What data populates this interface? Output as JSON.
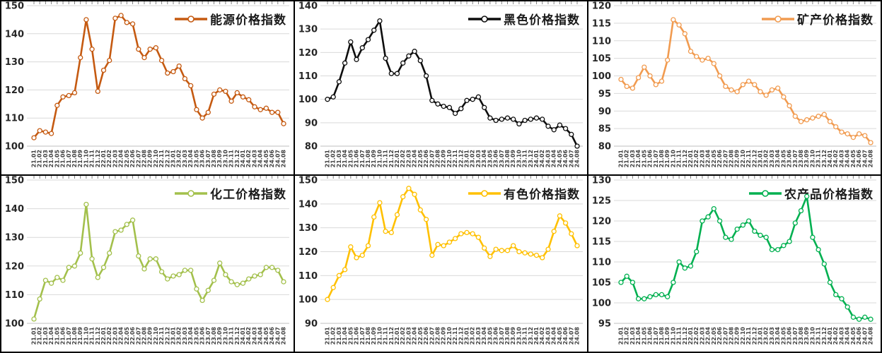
{
  "page": {
    "background": "#FFFFFF",
    "divider_color": "#000000",
    "gridline_color": "#D9D9D9",
    "axis_line_color": "#BFBFBF",
    "tick_mark_color": "#808080",
    "y_tick_label_color": "#262626",
    "x_tick_label_color": "#404040",
    "legend_text_color": "#1A1A1A"
  },
  "chart_data": {
    "type": "line",
    "layout": "2x3-grid",
    "grid": true,
    "legend_position": "top-right-inside",
    "marker": "circle-open-white-fill",
    "categories": [
      "21.01",
      "21.02",
      "21.03",
      "21.04",
      "21.05",
      "21.06",
      "21.07",
      "21.08",
      "21.09",
      "21.10",
      "21.11",
      "21.12",
      "22.01",
      "22.02",
      "22.03",
      "22.04",
      "22.05",
      "22.06",
      "22.07",
      "22.08",
      "22.09",
      "22.10",
      "22.11",
      "22.12",
      "23.01",
      "23.02",
      "23.03",
      "23.04",
      "23.05",
      "23.06",
      "23.07",
      "23.08",
      "23.09",
      "23.10",
      "23.11",
      "23.12",
      "24.01",
      "24.02",
      "24.03",
      "24.04",
      "24.05",
      "24.06",
      "24.07",
      "24.08"
    ],
    "charts": [
      {
        "legend": "能源价格指数",
        "color": "#C55A11",
        "ylim": [
          100,
          150
        ],
        "ytick_step": 10,
        "yticks": [
          100,
          110,
          120,
          130,
          140,
          150
        ],
        "values": [
          103,
          105.5,
          105,
          104.5,
          114.5,
          117.5,
          118,
          119,
          131.5,
          145,
          134.5,
          119.5,
          127,
          130.5,
          145.5,
          146.5,
          144,
          143.5,
          134.5,
          131.5,
          134.5,
          135,
          130.5,
          126,
          126.5,
          128.5,
          124,
          121.5,
          113,
          110,
          112,
          118.5,
          120,
          119.5,
          116,
          119,
          117.5,
          116.5,
          114,
          113,
          113.5,
          112,
          112,
          108
        ]
      },
      {
        "legend": "黑色价格指数",
        "color": "#0D0D0D",
        "ylim": [
          80,
          140
        ],
        "ytick_step": 10,
        "yticks": [
          80,
          90,
          100,
          110,
          120,
          130,
          140
        ],
        "values": [
          100,
          101,
          107.5,
          115.5,
          124.5,
          117,
          122,
          125.5,
          129.5,
          133.5,
          117.5,
          111,
          111,
          115.5,
          118.5,
          120.5,
          116.5,
          110,
          99.5,
          98,
          97,
          96.5,
          94,
          96,
          99.5,
          100,
          101,
          96.5,
          92,
          91,
          91.5,
          92,
          91.5,
          89.5,
          91,
          91.5,
          92,
          91.5,
          88.5,
          87,
          89,
          87.5,
          85,
          80
        ]
      },
      {
        "legend": "矿产价格指数",
        "color": "#F19B50",
        "ylim": [
          80,
          120
        ],
        "ytick_step": 5,
        "yticks": [
          80,
          85,
          90,
          95,
          100,
          105,
          110,
          115,
          120
        ],
        "values": [
          99,
          97,
          96.5,
          99.5,
          102.5,
          100,
          97.5,
          98.5,
          104.5,
          116,
          114.5,
          112,
          107,
          105.5,
          104.5,
          105,
          103.5,
          100,
          97,
          96,
          95.5,
          97.5,
          98.5,
          97.5,
          95.5,
          94.5,
          96,
          96.5,
          94,
          91.5,
          88.5,
          87,
          87.5,
          88,
          88.5,
          89,
          87,
          85.5,
          84,
          83.5,
          82.5,
          83.5,
          83,
          81
        ]
      },
      {
        "legend": "化工价格指数",
        "color": "#A3C04C",
        "ylim": [
          100,
          150
        ],
        "ytick_step": 10,
        "yticks": [
          100,
          110,
          120,
          130,
          140,
          150
        ],
        "values": [
          101.5,
          108.5,
          115,
          114,
          116,
          115,
          119.5,
          120,
          124.5,
          141.5,
          122.5,
          116,
          119.5,
          124.5,
          132,
          132.5,
          134.5,
          136,
          123.5,
          119,
          122.5,
          122.5,
          118,
          115.5,
          116.5,
          117,
          118.5,
          118.5,
          112,
          108,
          111.5,
          115,
          121,
          117,
          114.5,
          113.5,
          114,
          115.5,
          116.5,
          117,
          119.5,
          119.5,
          118.5,
          114.5
        ]
      },
      {
        "legend": "有色价格指数",
        "color": "#FFC000",
        "ylim": [
          90,
          150
        ],
        "ytick_step": 10,
        "yticks": [
          90,
          100,
          110,
          120,
          130,
          140,
          150
        ],
        "values": [
          100,
          105,
          110,
          112.5,
          122,
          117.5,
          118.5,
          122.5,
          134.5,
          140.5,
          128.5,
          128,
          135.5,
          143,
          146.5,
          144,
          137.5,
          133.5,
          118.5,
          123,
          122.5,
          124,
          125.5,
          127.5,
          128,
          127.5,
          126,
          121.5,
          118,
          121,
          120.5,
          120.5,
          122.5,
          120,
          119.5,
          119,
          118.5,
          117.5,
          121,
          128.5,
          135,
          132,
          127.5,
          122.5
        ]
      },
      {
        "legend": "农产品价格指数",
        "color": "#00B050",
        "ylim": [
          95,
          130
        ],
        "ytick_step": 5,
        "yticks": [
          95,
          100,
          105,
          110,
          115,
          120,
          125,
          130
        ],
        "values": [
          105,
          106.5,
          105,
          101,
          101,
          101.5,
          102,
          102,
          101.5,
          105,
          110,
          108.5,
          109,
          112.5,
          120,
          121,
          123,
          120,
          116,
          115.5,
          118,
          119,
          120,
          117.5,
          116.5,
          116,
          113,
          113,
          114,
          115,
          119.5,
          122.5,
          126,
          116,
          113,
          109.5,
          105,
          102,
          101,
          99,
          96.5,
          96,
          96.5,
          96
        ]
      }
    ]
  }
}
